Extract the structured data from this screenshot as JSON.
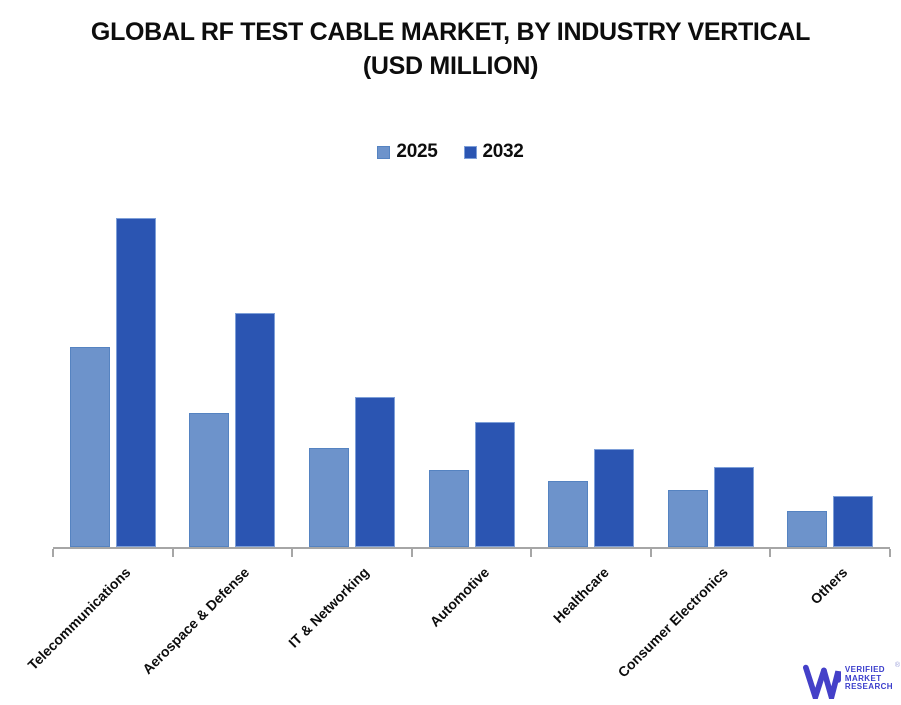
{
  "title": {
    "line1": "GLOBAL RF TEST CABLE MARKET, BY INDUSTRY VERTICAL",
    "line2": "(USD MILLION)"
  },
  "chart_data": {
    "type": "bar",
    "title": "GLOBAL RF TEST CABLE MARKET, BY INDUSTRY VERTICAL (USD MILLION)",
    "categories": [
      "Telecommunications",
      "Aerospace & Defense",
      "IT & Networking",
      "Automotive",
      "Healthcare",
      "Consumer Electronics",
      "Others"
    ],
    "series": [
      {
        "name": "2025",
        "color": "#6D93CB",
        "border_color": "#5583C1",
        "values": [
          200,
          134,
          99,
          77,
          66,
          57,
          36
        ]
      },
      {
        "name": "2032",
        "color": "#2B55B2",
        "border_color": "#7E9FD8",
        "values": [
          329,
          234,
          150,
          125,
          98,
          80,
          51
        ]
      }
    ],
    "value_axis_visible": false,
    "ylim": [
      0,
      340
    ],
    "grid": false,
    "legend_position": "top",
    "axis_color": "#A6A6A6"
  },
  "logo": {
    "lines": [
      "VERIFIED",
      "MARKET",
      "RESEARCH"
    ],
    "reg": "®",
    "monogram_color": "#4440C8",
    "text_color": "#3B3ECC"
  }
}
